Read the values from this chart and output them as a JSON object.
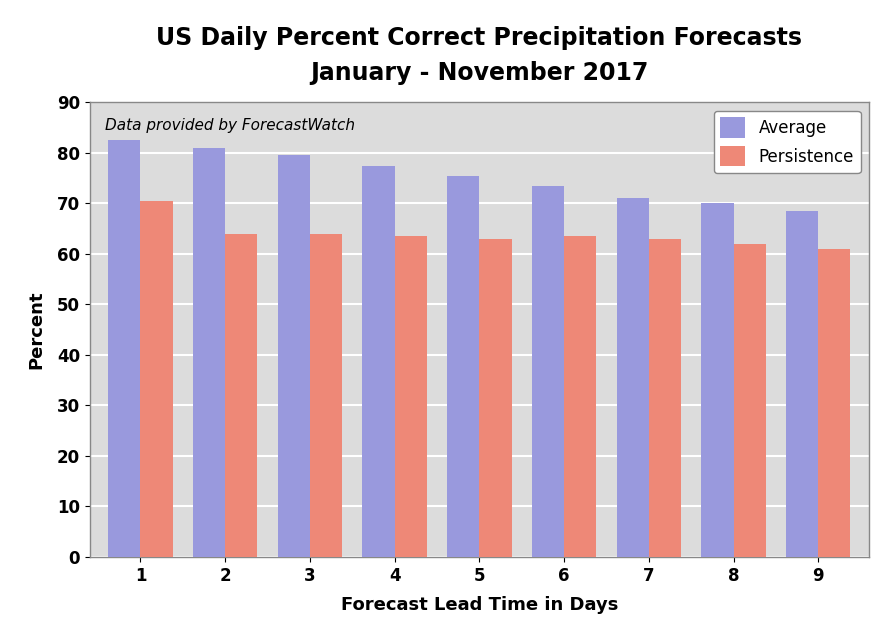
{
  "title_line1": "US Daily Percent Correct Precipitation Forecasts",
  "title_line2": "January - November 2017",
  "xlabel": "Forecast Lead Time in Days",
  "ylabel": "Percent",
  "annotation": "Data provided by ForecastWatch",
  "categories": [
    1,
    2,
    3,
    4,
    5,
    6,
    7,
    8,
    9
  ],
  "average_values": [
    82.5,
    81.0,
    79.5,
    77.5,
    75.5,
    73.5,
    71.0,
    70.0,
    68.5
  ],
  "persistence_values": [
    70.5,
    64.0,
    64.0,
    63.5,
    63.0,
    63.5,
    63.0,
    62.0,
    61.0
  ],
  "bar_color_average": "#9999dd",
  "bar_color_persistence": "#ee8877",
  "plot_bg_color": "#dcdcdc",
  "fig_bg_color": "#ffffff",
  "grid_color": "#ffffff",
  "ylim": [
    0,
    90
  ],
  "yticks": [
    0,
    10,
    20,
    30,
    40,
    50,
    60,
    70,
    80,
    90
  ],
  "legend_labels": [
    "Average",
    "Persistence"
  ],
  "bar_width": 0.38,
  "title_fontsize": 17,
  "axis_label_fontsize": 13,
  "tick_fontsize": 12,
  "annotation_fontsize": 11,
  "spine_color": "#888888"
}
